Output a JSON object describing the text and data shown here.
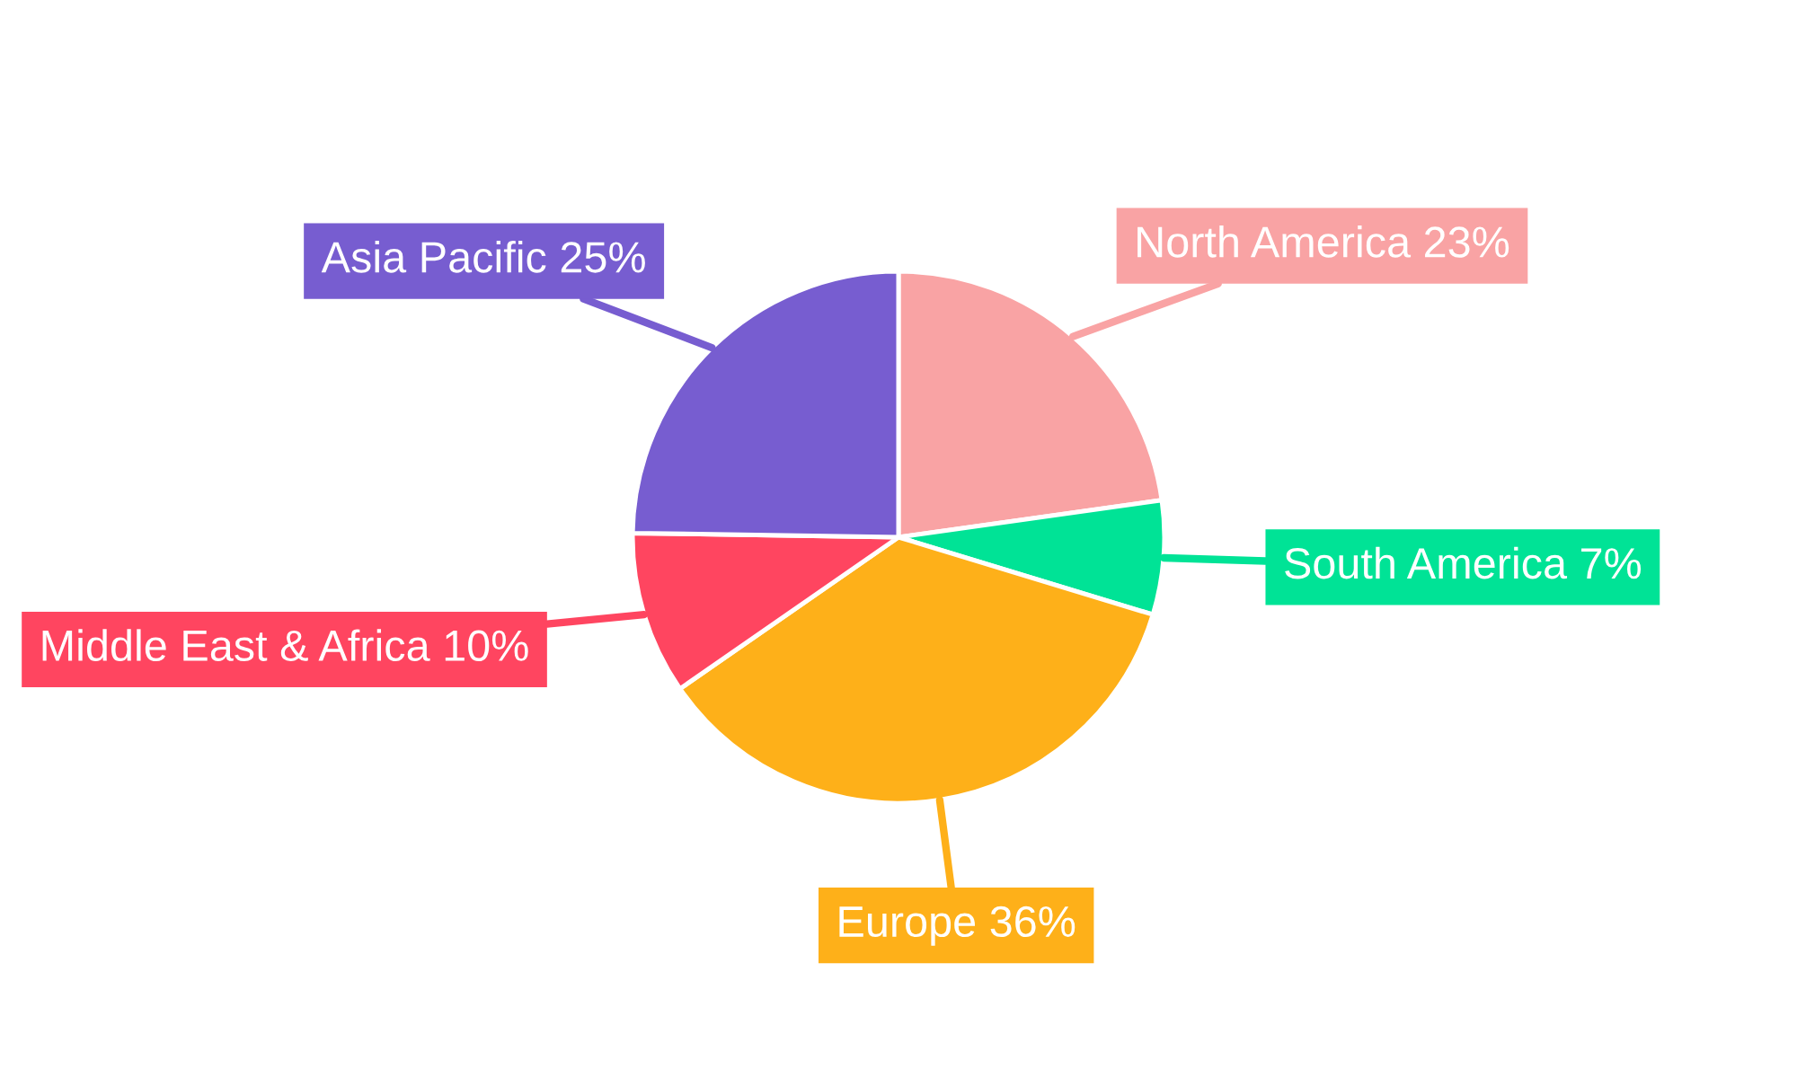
{
  "chart_data": {
    "type": "pie",
    "categories": [
      "North America",
      "South America",
      "Europe",
      "Middle East & Africa",
      "Asia Pacific"
    ],
    "values": [
      23,
      7,
      36,
      10,
      25
    ],
    "value_labels": [
      "23%",
      "7%",
      "36%",
      "10%",
      "25%"
    ],
    "colors": [
      "#f9a3a4",
      "#00e396",
      "#feb019",
      "#ff4560",
      "#775dd0"
    ]
  }
}
